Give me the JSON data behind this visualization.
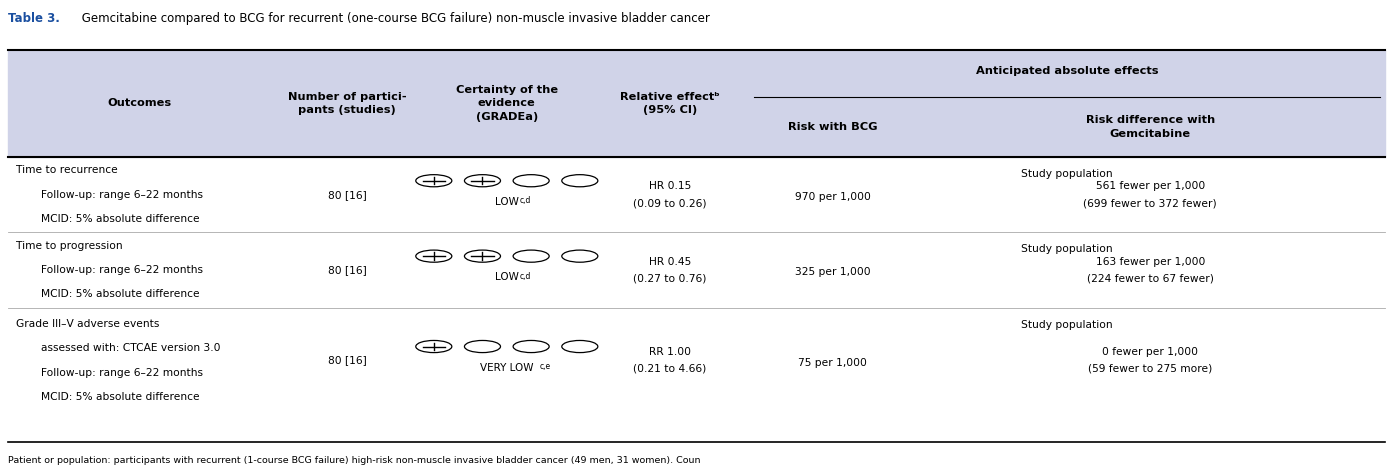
{
  "title_bold": "Table 3.",
  "title_rest": " Gemcitabine compared to BCG for recurrent (one-course BCG failure) non-muscle invasive bladder cancer",
  "header_bg": "#d0d3e8",
  "footer_text": "Patient or population: participants with recurrent (1-course BCG failure) high-risk non-muscle invasive bladder cancer (49 men, 31 women). Coun",
  "rows": [
    {
      "outcome_lines": [
        "Time to recurrence",
        "  Follow-up: range 6–22 months",
        "  MCID: 5% absolute difference"
      ],
      "participants": "80 [16]",
      "grade_filled": 2,
      "grade_total": 4,
      "grade_label": "LOW",
      "grade_super": "c,d",
      "relative_effect_line1": "HR 0.15",
      "relative_effect_line2": "(0.09 to 0.26)",
      "risk_bcg_val": "970 per 1,000",
      "risk_diff_line1": "561 fewer per 1,000",
      "risk_diff_line2": "(699 fewer to 372 fewer)"
    },
    {
      "outcome_lines": [
        "Time to progression",
        "  Follow-up: range 6–22 months",
        "  MCID: 5% absolute difference"
      ],
      "participants": "80 [16]",
      "grade_filled": 2,
      "grade_total": 4,
      "grade_label": "LOW",
      "grade_super": "c,d",
      "relative_effect_line1": "HR 0.45",
      "relative_effect_line2": "(0.27 to 0.76)",
      "risk_bcg_val": "325 per 1,000",
      "risk_diff_line1": "163 fewer per 1,000",
      "risk_diff_line2": "(224 fewer to 67 fewer)"
    },
    {
      "outcome_lines": [
        "Grade III–V adverse events",
        "  assessed with: CTCAE version 3.0",
        "  Follow-up: range 6–22 months",
        "  MCID: 5% absolute difference"
      ],
      "participants": "80 [16]",
      "grade_filled": 1,
      "grade_total": 4,
      "grade_label": "VERY LOW",
      "grade_super": "c,e",
      "relative_effect_line1": "RR 1.00",
      "relative_effect_line2": "(0.21 to 4.66)",
      "risk_bcg_val": "75 per 1,000",
      "risk_diff_line1": "0 fewer per 1,000",
      "risk_diff_line2": "(59 fewer to 275 more)"
    }
  ]
}
